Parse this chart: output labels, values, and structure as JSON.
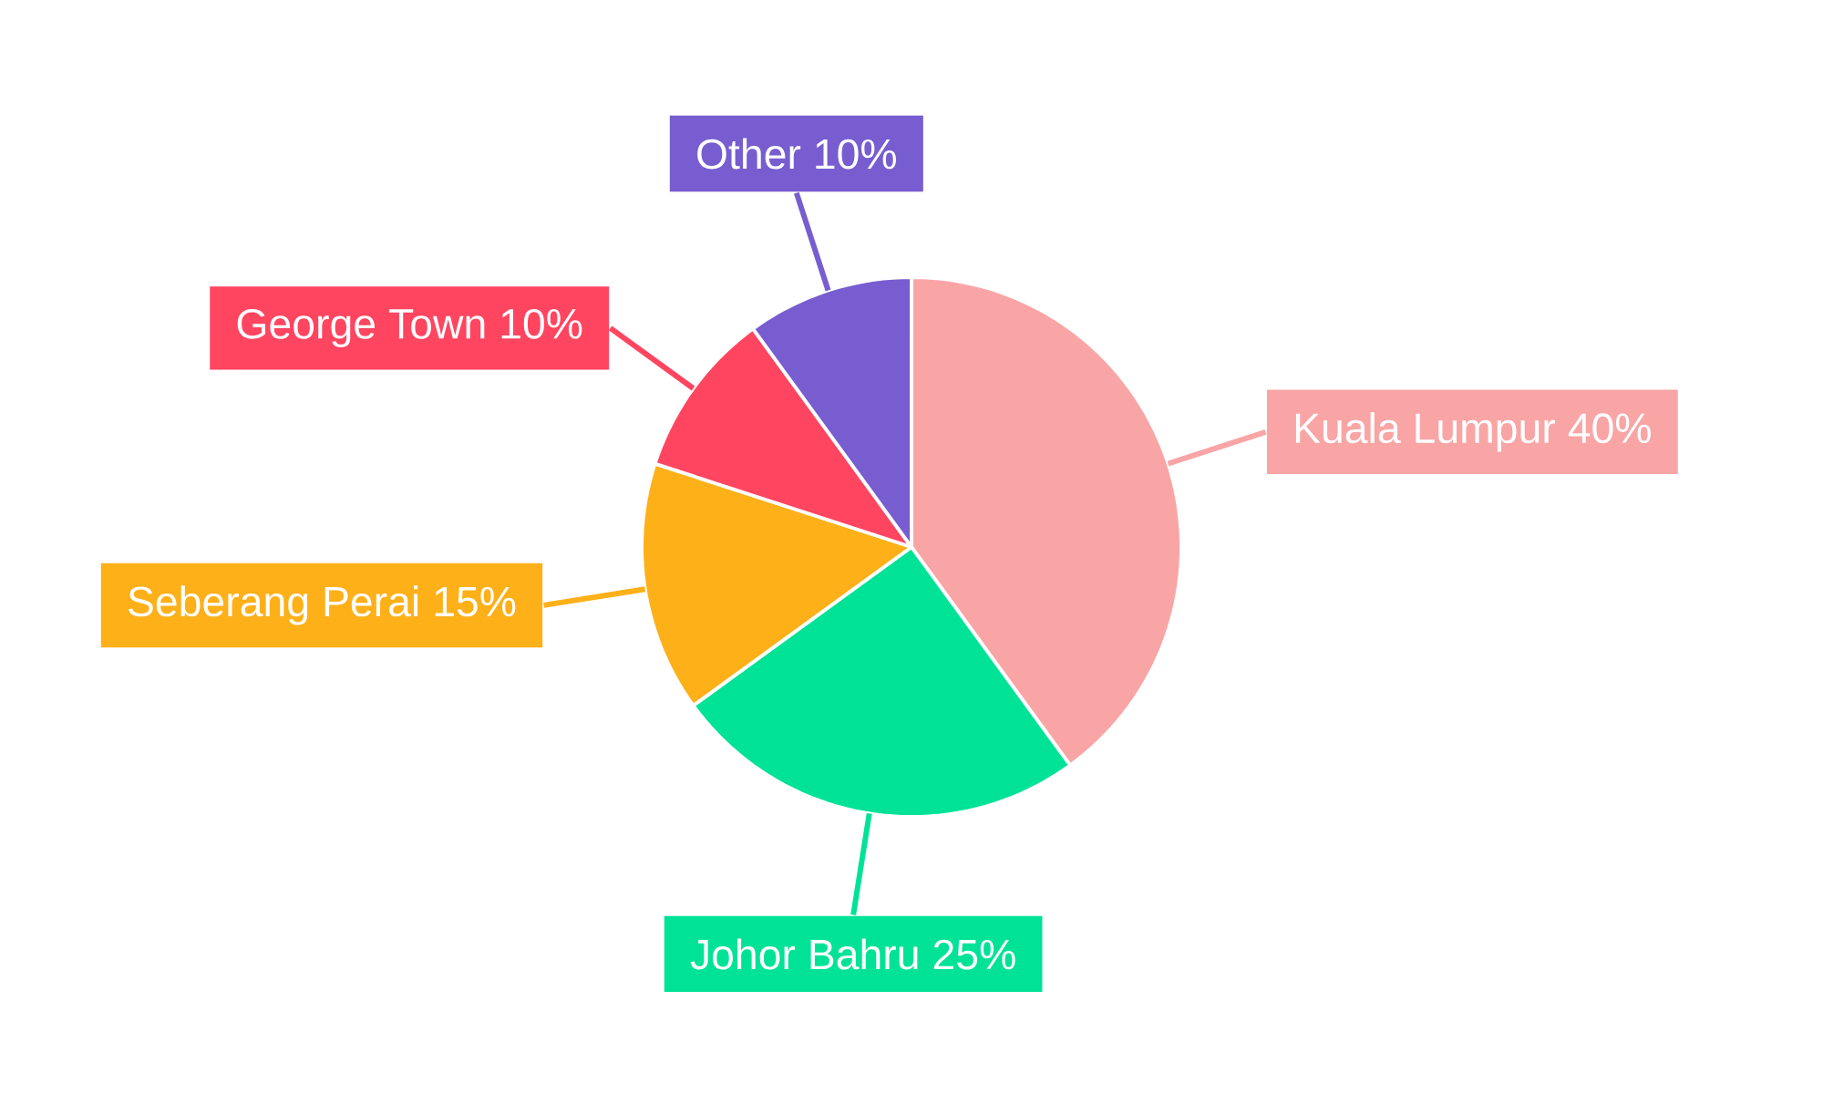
{
  "chart_data": {
    "type": "pie",
    "categories": [
      "Kuala Lumpur",
      "Johor Bahru",
      "Seberang Perai",
      "George Town",
      "Other"
    ],
    "values": [
      40,
      25,
      15,
      10,
      10
    ],
    "value_labels": [
      "40%",
      "25%",
      "15%",
      "10%",
      "10%"
    ],
    "colors": [
      "#f9a5a6",
      "#00e396",
      "#feb019",
      "#ff4560",
      "#775dd0"
    ]
  }
}
